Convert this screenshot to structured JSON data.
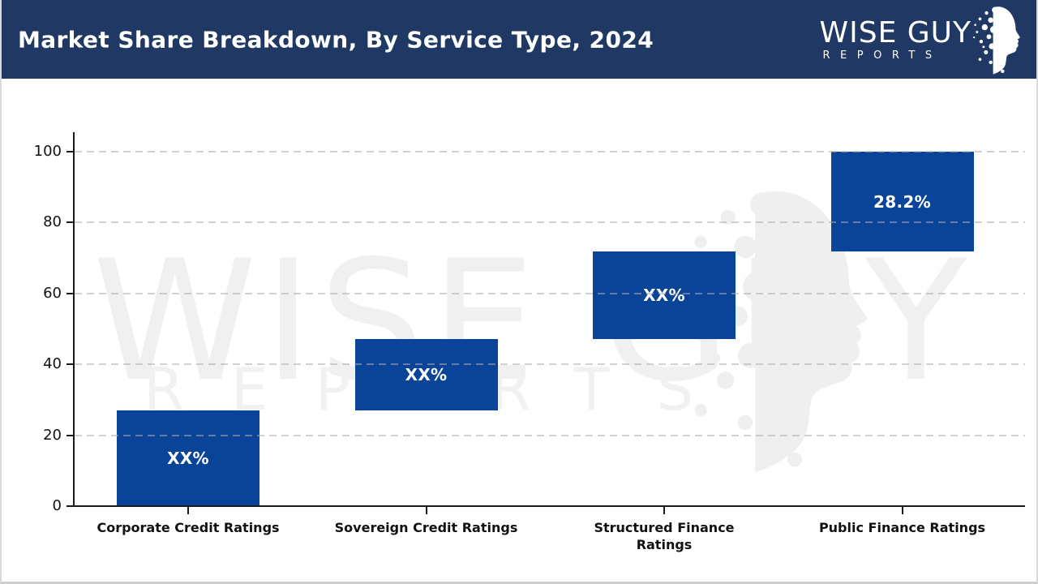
{
  "header": {
    "title": "Market Share Breakdown, By Service Type, 2024",
    "logo": {
      "wordmark": "WISE GUY",
      "subtext": "REPORTS"
    }
  },
  "watermark": {
    "wordmark": "WISE GUY",
    "subtext": "REPORTS"
  },
  "colors": {
    "header_background": "#1f3864",
    "bar_fill": "#0a4499",
    "bar_label_text": "#ffffff",
    "axis": "#1a1a1a",
    "gridline": "#acacac"
  },
  "chart_data": {
    "type": "bar",
    "subtype": "floating-waterfall",
    "title": "Market Share Breakdown, By Service Type, 2024",
    "categories": [
      "Corporate Credit Ratings",
      "Sovereign Credit Ratings",
      "Structured Finance Ratings",
      "Public Finance Ratings"
    ],
    "bars": [
      {
        "category": "Corporate Credit Ratings",
        "start": 0,
        "end": 26.9,
        "label": "XX%"
      },
      {
        "category": "Sovereign Credit Ratings",
        "start": 26.9,
        "end": 47.2,
        "label": "XX%"
      },
      {
        "category": "Structured Finance Ratings",
        "start": 47.2,
        "end": 71.8,
        "label": "XX%"
      },
      {
        "category": "Public Finance Ratings",
        "start": 71.8,
        "end": 100,
        "label": "28.2%"
      }
    ],
    "ylabel": "",
    "xlabel": "",
    "ylim": [
      0,
      100
    ],
    "yticks": [
      0,
      20,
      40,
      60,
      80,
      100
    ],
    "grid": "horizontal-dashed",
    "legend": "none",
    "units": "percent"
  }
}
